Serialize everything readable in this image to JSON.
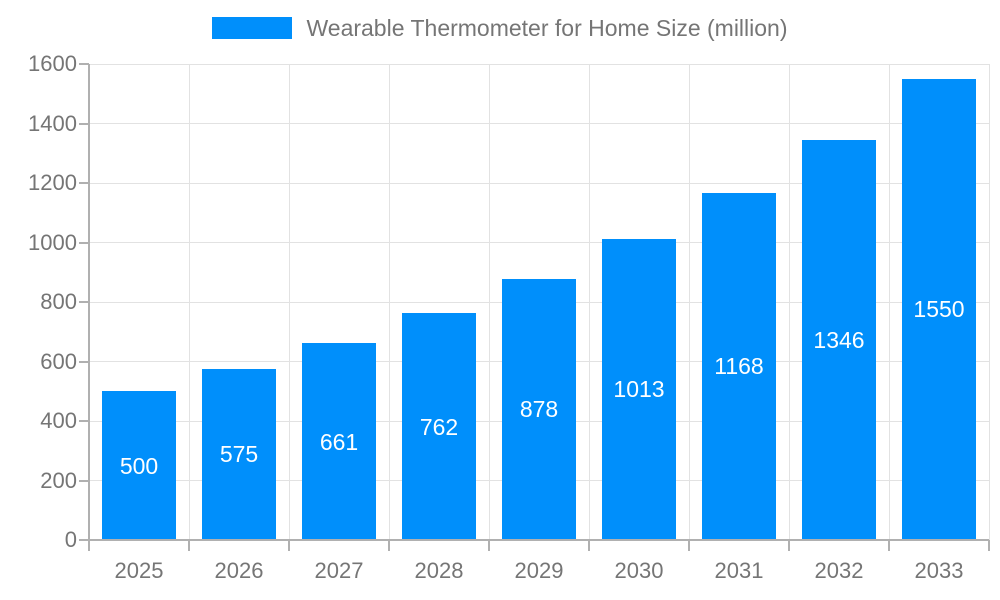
{
  "chart_data": {
    "type": "bar",
    "series_name": "Wearable Thermometer for Home Size (million)",
    "categories": [
      "2025",
      "2026",
      "2027",
      "2028",
      "2029",
      "2030",
      "2031",
      "2032",
      "2033"
    ],
    "values": [
      500,
      575,
      661,
      762,
      878,
      1013,
      1168,
      1346,
      1550
    ],
    "ylim": [
      0,
      1600
    ],
    "ytick_step": 200,
    "ytick_labels": [
      "0",
      "200",
      "400",
      "600",
      "800",
      "1000",
      "1200",
      "1400",
      "1600"
    ],
    "legend_position": "top",
    "grid": "horizontal and vertical light gray gridlines",
    "bar_value_labels_inside": true,
    "colors": {
      "bar": "#008ffb",
      "bar_value_text": "#ffffff",
      "axis_text": "#757575",
      "legend_text": "#757575",
      "gridline": "#e2e2e2",
      "axis_line": "#b0b0b0",
      "tick": "#b0b0b0",
      "background": "#ffffff"
    }
  }
}
